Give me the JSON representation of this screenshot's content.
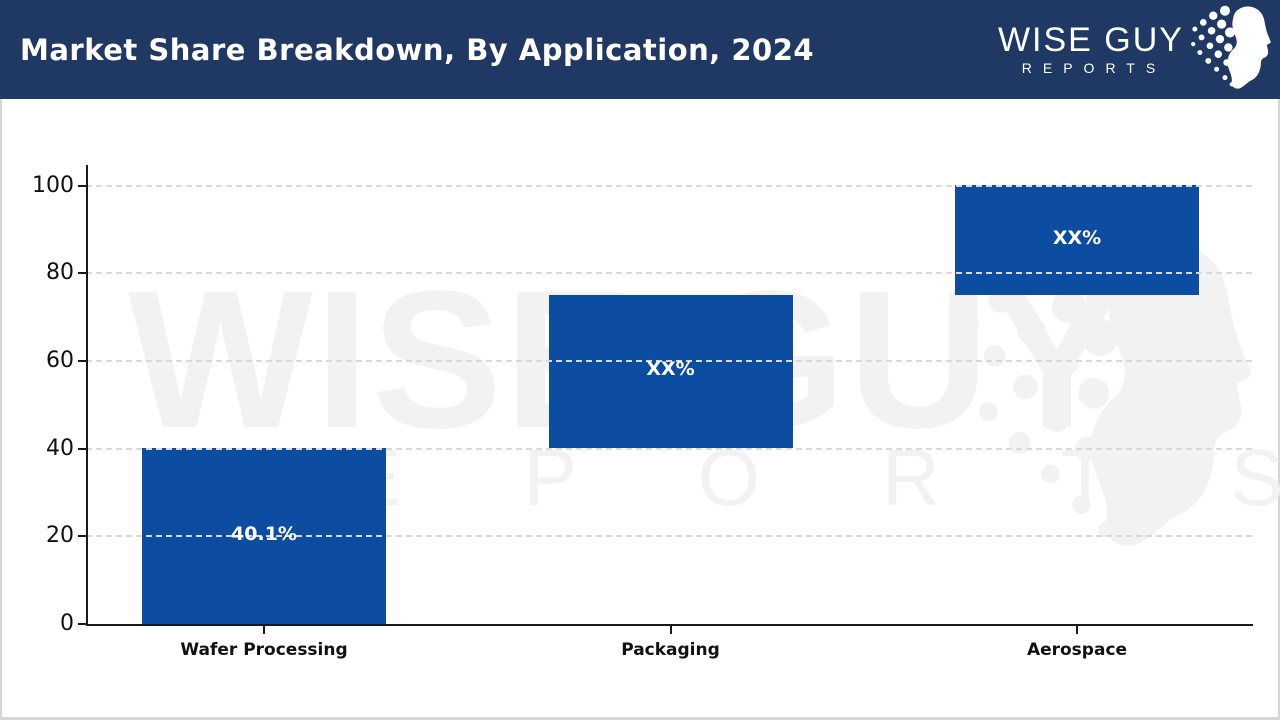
{
  "header": {
    "title": "Market Share Breakdown, By Application, 2024",
    "background": "#1f3864",
    "logo": {
      "line1": "WISE GUY",
      "line2": "REPORTS"
    }
  },
  "watermark": {
    "line1": "WISE GUY",
    "line2": "R E P O R T S"
  },
  "colors": {
    "header_bg": "#1f3864",
    "bar": "#0d4da1",
    "gridline": "#d9d9d9",
    "axis": "#1a1a1a",
    "value_label": "#ffffff",
    "watermark": "#f2f2f2",
    "frame_border": "#d6d6d6"
  },
  "chart_data": {
    "type": "bar",
    "subtype": "stacked-waterfall",
    "title": "Market Share Breakdown, By Application, 2024",
    "categories": [
      "Wafer Processing",
      "Packaging",
      "Aerospace"
    ],
    "segments": [
      {
        "category": "Wafer Processing",
        "start": 0,
        "end": 40.1,
        "value": 40.1,
        "label": "40.1%"
      },
      {
        "category": "Packaging",
        "start": 40.1,
        "end": 75.1,
        "value": 35.0,
        "label": "XX%"
      },
      {
        "category": "Aerospace",
        "start": 75.1,
        "end": 100.1,
        "value": 25.0,
        "label": "XX%"
      }
    ],
    "yticks": [
      0,
      20,
      40,
      60,
      80,
      100
    ],
    "ylim": [
      0,
      105
    ],
    "xlabel": "",
    "ylabel": "",
    "bar_color": "#0d4da1",
    "value_label_color": "#ffffff",
    "grid": {
      "axis": "y",
      "style": "dashed",
      "color": "#d9d9d9",
      "drawn_over_bars": true
    },
    "legend": "none"
  }
}
